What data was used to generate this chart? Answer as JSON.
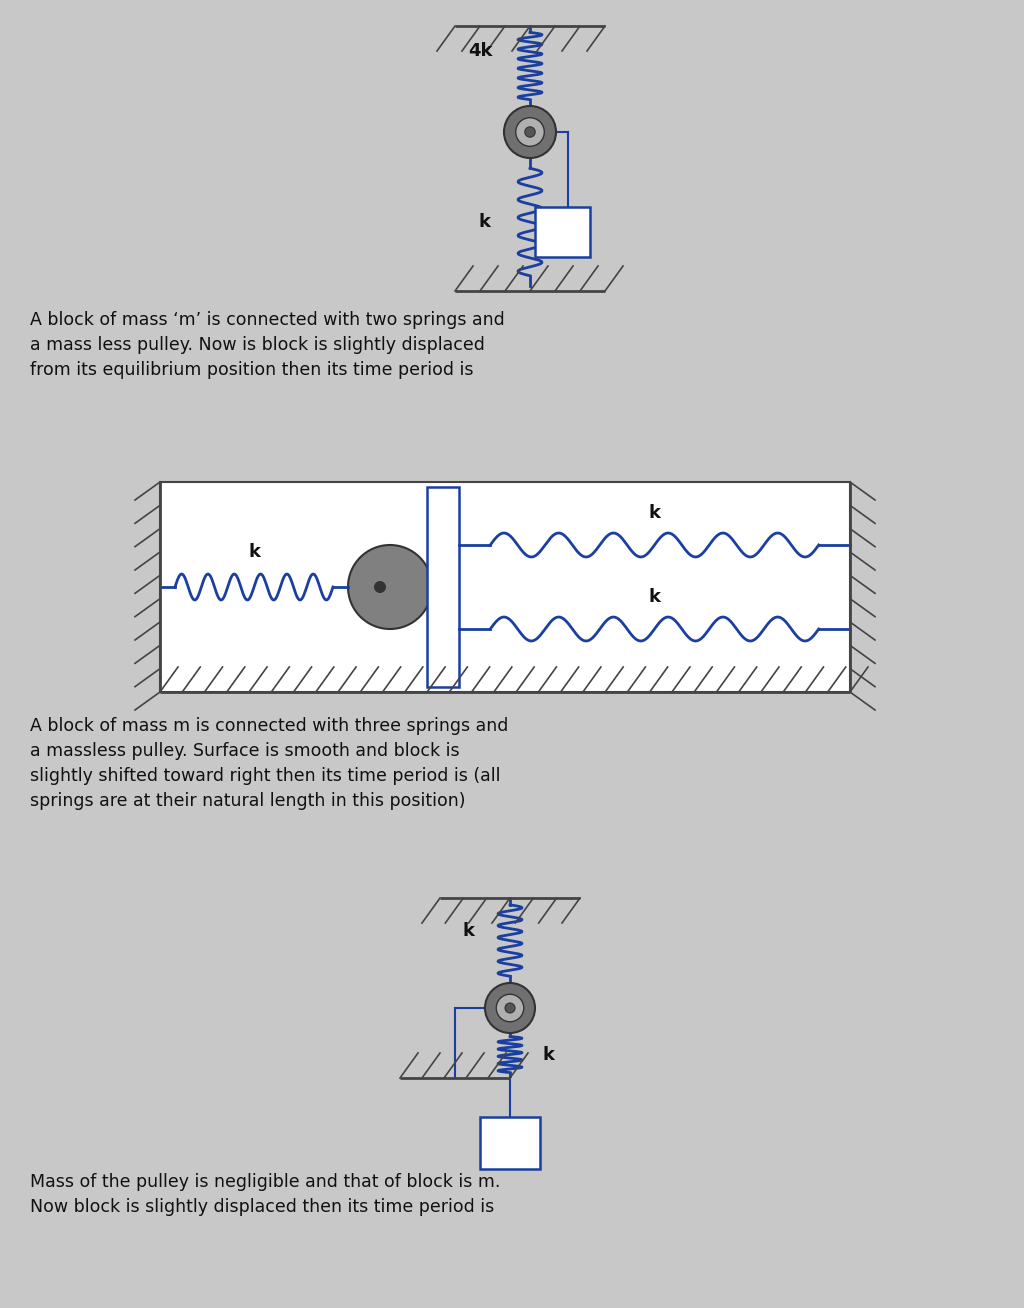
{
  "bg_color": "#c8c8c8",
  "panel_bg": "#e0e0e0",
  "border_color": "#444444",
  "spring_color": "#1a3fa0",
  "pulley_outer": "#606060",
  "pulley_inner": "#a0a0a0",
  "hatch_color": "#444444",
  "text_color": "#111111",
  "block_color": "#ffffff",
  "block_edge": "#1a3fa0",
  "panel1_text": "A block of mass ‘m’ is connected with two springs and\na mass less pulley. Now is block is slightly displaced\nfrom its equilibrium position then its time period is",
  "panel2_text": "A block of mass m is connected with three springs and\na massless pulley. Surface is smooth and block is\nslightly shifted toward right then its time period is (all\nsprings are at their natural length in this position)",
  "panel3_text": "Mass of the pulley is negligible and that of block is m.\nNow block is slightly displaced then its time period is",
  "figsize": [
    10.24,
    13.08
  ],
  "dpi": 100
}
